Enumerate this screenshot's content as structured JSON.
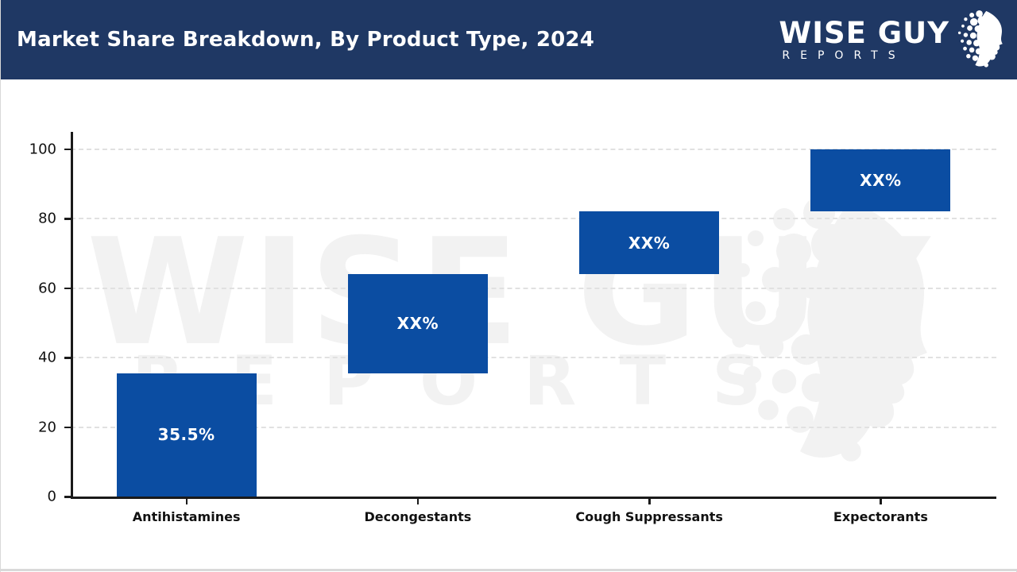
{
  "header": {
    "title": "Market Share Breakdown, By Product Type, 2024",
    "bg_color": "#1f3864",
    "logo": {
      "line1": "WISE GUY",
      "line2": "REPORTS"
    }
  },
  "watermark": {
    "line1": "WISE GUY",
    "line2": "REPORTS"
  },
  "chart_data": {
    "type": "bar",
    "subtype": "waterfall",
    "title": "Market Share Breakdown, By Product Type, 2024",
    "xlabel": "",
    "ylabel": "",
    "categories": [
      "Antihistamines",
      "Decongestants",
      "Cough Suppressants",
      "Expectorants"
    ],
    "segments": [
      {
        "category": "Antihistamines",
        "start": 0,
        "end": 35.5,
        "label": "35.5%"
      },
      {
        "category": "Decongestants",
        "start": 35.5,
        "end": 64,
        "label": "XX%"
      },
      {
        "category": "Cough Suppressants",
        "start": 64,
        "end": 82,
        "label": "XX%"
      },
      {
        "category": "Expectorants",
        "start": 82,
        "end": 100,
        "label": "XX%"
      }
    ],
    "values": [
      35.5,
      28.5,
      18,
      18
    ],
    "yticks": [
      0,
      20,
      40,
      60,
      80,
      100
    ],
    "ylim": [
      0,
      105
    ],
    "grid": "horizontal-dashed",
    "legend": "none",
    "bar_color": "#0b4da2",
    "bar_label_color": "#ffffff",
    "axis_color": "#1a1a1a",
    "gridline_color": "#e1e1e1",
    "watermark_color": "#f2f2f2"
  }
}
